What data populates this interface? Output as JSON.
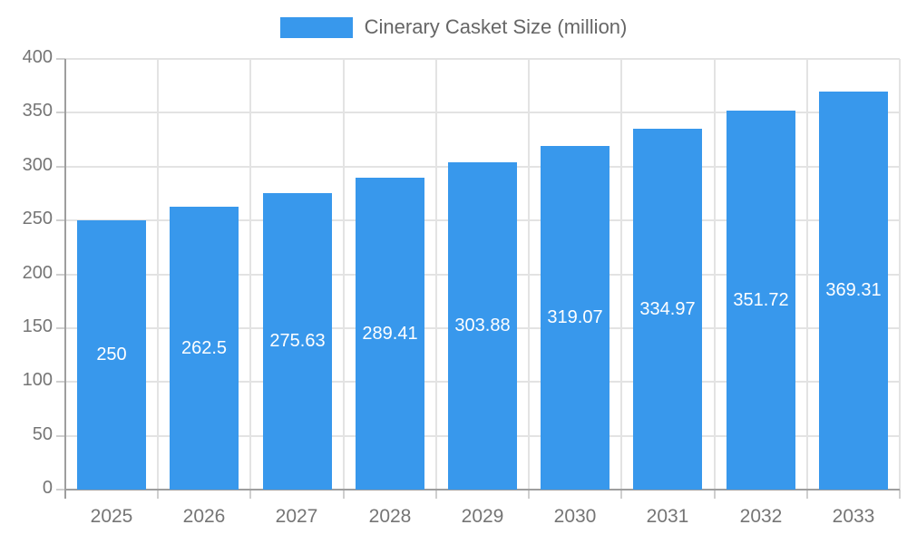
{
  "legend": {
    "label": "Cinerary Casket Size (million)"
  },
  "colors": {
    "bar": "#3898EC",
    "grid": "#E3E3E3",
    "axis": "#9E9E9E",
    "tick": "#CFCFCF",
    "tick_text": "#757575",
    "bar_label_text": "#FFFFFF",
    "legend_text": "#666666",
    "background": "#FFFFFF"
  },
  "chart_data": {
    "type": "bar",
    "title": "Cinerary Casket Size (million)",
    "categories": [
      "2025",
      "2026",
      "2027",
      "2028",
      "2029",
      "2030",
      "2031",
      "2032",
      "2033"
    ],
    "values": [
      250,
      262.5,
      275.63,
      289.41,
      303.88,
      319.07,
      334.97,
      351.72,
      369.31
    ],
    "value_labels": [
      "250",
      "262.5",
      "275.63",
      "289.41",
      "303.88",
      "319.07",
      "334.97",
      "351.72",
      "369.31"
    ],
    "series": [
      {
        "name": "Cinerary Casket Size (million)",
        "values": [
          250,
          262.5,
          275.63,
          289.41,
          303.88,
          319.07,
          334.97,
          351.72,
          369.31
        ]
      }
    ],
    "xlabel": "",
    "ylabel": "",
    "ylim": [
      0,
      400
    ],
    "ytick_step": 50,
    "ytick_labels": [
      "0",
      "50",
      "100",
      "150",
      "200",
      "250",
      "300",
      "350",
      "400"
    ],
    "grid": "on",
    "legend_position": "top",
    "value_labels_position": "center-of-bar"
  }
}
